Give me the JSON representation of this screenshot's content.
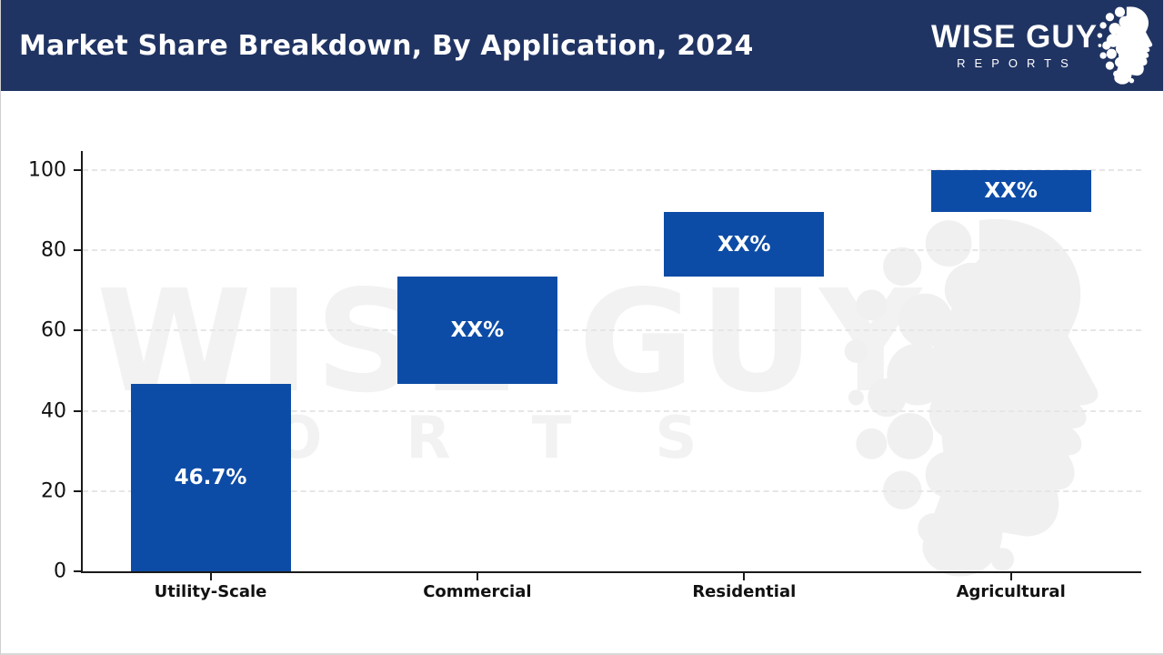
{
  "header": {
    "title": "Market Share Breakdown, By Application, 2024",
    "logo": {
      "line1": "WISE GUY",
      "line2": "REPORTS"
    }
  },
  "watermark": {
    "line1": "WISE GUY",
    "line2": "PORTS"
  },
  "colors": {
    "header_bg": "#203463",
    "bar": "#0d4ca6",
    "gridline": "#e6e6e6",
    "axis": "#1a1a1a",
    "bar_label": "#ffffff",
    "watermark": "#f2f2f2"
  },
  "chart_data": {
    "type": "bar",
    "subtype": "waterfall",
    "title": "Market Share Breakdown, By Application, 2024",
    "categories": [
      "Utility-Scale",
      "Commercial",
      "Residential",
      "Agricultural"
    ],
    "segments": [
      {
        "category": "Utility-Scale",
        "start": 0,
        "end": 46.7,
        "label": "46.7%"
      },
      {
        "category": "Commercial",
        "start": 46.7,
        "end": 73.5,
        "label": "XX%"
      },
      {
        "category": "Residential",
        "start": 73.5,
        "end": 89.5,
        "label": "XX%"
      },
      {
        "category": "Agricultural",
        "start": 89.5,
        "end": 100,
        "label": "XX%"
      }
    ],
    "xlabel": "",
    "ylabel": "",
    "ylim": [
      0,
      100
    ],
    "yticks": [
      0,
      20,
      40,
      60,
      80,
      100
    ],
    "grid": "horizontal-dashed",
    "legend_position": "none"
  }
}
